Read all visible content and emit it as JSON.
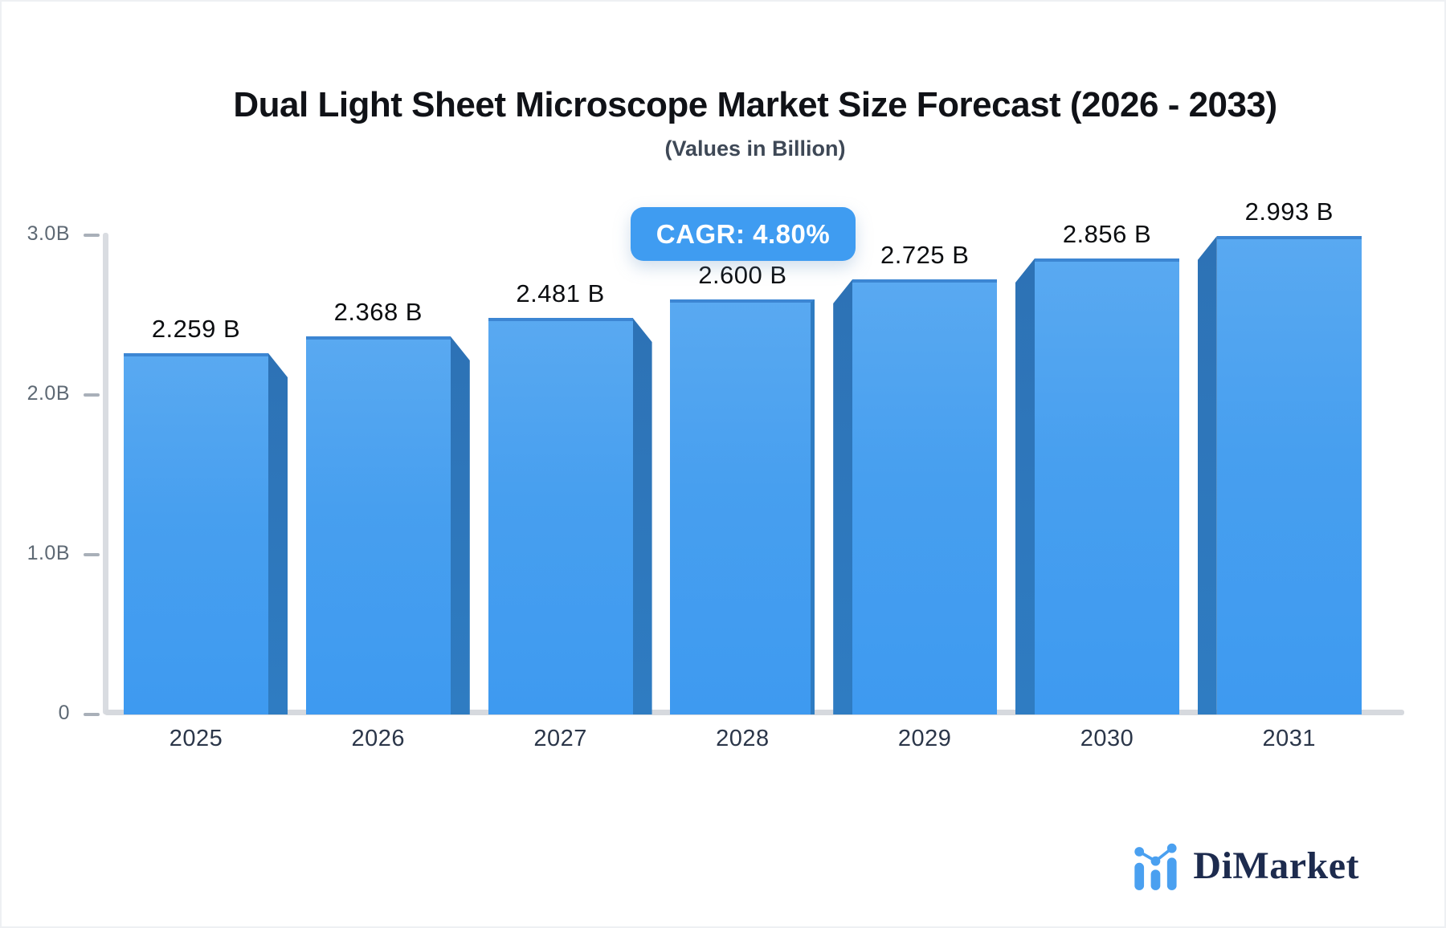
{
  "header": {
    "title": "Dual Light Sheet Microscope Market Size Forecast (2026 - 2033)",
    "subtitle": "(Values in Billion)"
  },
  "badge": {
    "label": "CAGR: 4.80%",
    "background_color": "#3f9cf1",
    "text_color": "#ffffff"
  },
  "chart_data": {
    "type": "bar",
    "title": "Dual Light Sheet Microscope Market Size Forecast (2026 - 2033)",
    "subtitle": "(Values in Billion)",
    "categories": [
      "2025",
      "2026",
      "2027",
      "2028",
      "2029",
      "2030",
      "2031"
    ],
    "values": [
      2.259,
      2.368,
      2.481,
      2.6,
      2.725,
      2.856,
      2.993
    ],
    "value_labels": [
      "2.259 B",
      "2.368 B",
      "2.481 B",
      "2.600 B",
      "2.725 B",
      "2.856 B",
      "2.993 B"
    ],
    "xlabel": "",
    "ylabel": "",
    "ylim": [
      0,
      3.0
    ],
    "y_ticks": [
      {
        "label": "0",
        "value": 0
      },
      {
        "label": "1.0B",
        "value": 1
      },
      {
        "label": "2.0B",
        "value": 2
      },
      {
        "label": "3.0B",
        "value": 3
      }
    ],
    "annotation": "CAGR: 4.80%",
    "grid": "off",
    "legend_position": "none",
    "bar_color_top": "#59a9f1",
    "bar_color_bottom": "#3e9af0",
    "bar_bevel_color": "#2f7cc2"
  },
  "logo": {
    "text": "DiMarket",
    "icon": "bar-line-chart-icon",
    "icon_color": "#4aa0f0",
    "text_color": "#1d2b4e"
  }
}
